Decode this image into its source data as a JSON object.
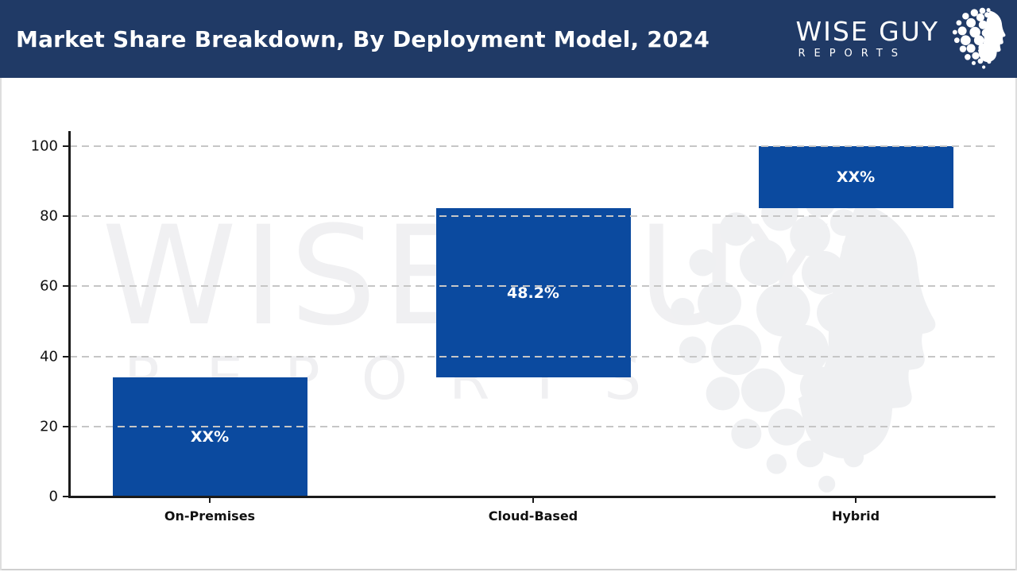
{
  "header": {
    "title": "Market Share Breakdown, By Deployment Model, 2024",
    "brand": {
      "line1": "WISE GUY",
      "line2": "REPORTS"
    }
  },
  "watermark": {
    "line1": "WISE GUY",
    "line2": "REPORTS"
  },
  "chart_data": {
    "type": "bar",
    "variant": "floating_waterfall_percent",
    "title": "Market Share Breakdown, By Deployment Model, 2024",
    "categories": [
      "On-Premises",
      "Cloud-Based",
      "Hybrid"
    ],
    "segments": [
      {
        "category": "On-Premises",
        "from": 0,
        "to": 34,
        "value_label": "XX%"
      },
      {
        "category": "Cloud-Based",
        "from": 34,
        "to": 82.2,
        "value_label": "48.2%",
        "value": 48.2
      },
      {
        "category": "Hybrid",
        "from": 82.2,
        "to": 100,
        "value_label": "XX%"
      }
    ],
    "yticks": [
      0,
      20,
      40,
      60,
      80,
      100
    ],
    "ylim": [
      0,
      104
    ],
    "xlabel": "",
    "ylabel": "",
    "grid": "horizontal-dashed-over-bars",
    "legend": "none",
    "bar_color": "#0b4a9f",
    "bar_label_color": "#ffffff",
    "axis_color": "#1a1a1a",
    "grid_color": "#c6c6c6",
    "header_bg": "#203a66",
    "watermark_color": "#f0f0f2"
  }
}
